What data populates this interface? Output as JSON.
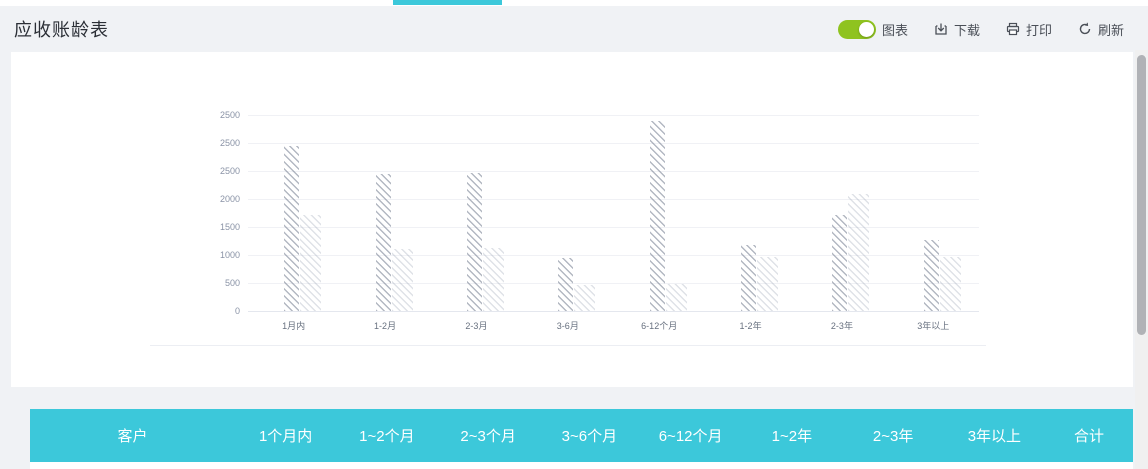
{
  "page": {
    "title": "应收账龄表"
  },
  "toolbar": {
    "chart_toggle_label": "图表",
    "chart_toggle_state": "on",
    "download_label": "下载",
    "print_label": "打印",
    "refresh_label": "刷新"
  },
  "colors": {
    "accent_cyan": "#3cc8da",
    "toggle_green": "#8fc31f",
    "page_bg": "#f0f2f5",
    "card_bg": "#ffffff",
    "bar_dark_hatch": "#6c7686",
    "bar_light_hatch": "#9aa3b4"
  },
  "chart_data": {
    "type": "bar",
    "title": "",
    "xlabel": "",
    "ylabel": "",
    "categories": [
      "1月内",
      "1-2月",
      "2-3月",
      "3-6月",
      "6-12个月",
      "1-2年",
      "2-3年",
      "3年以上"
    ],
    "series": [
      {
        "name": "series-dark-hatch",
        "values": [
          2950,
          2450,
          2460,
          950,
          3400,
          1180,
          1710,
          1270
        ]
      },
      {
        "name": "series-light-hatch",
        "values": [
          1720,
          1100,
          1130,
          470,
          480,
          970,
          2090,
          960
        ]
      }
    ],
    "y_axis_labels_top_to_bottom": [
      "2500",
      "2500",
      "2500",
      "2000",
      "1500",
      "1000",
      "500",
      "0"
    ],
    "ylim": [
      0,
      3500
    ],
    "grid": true,
    "legend_position": "none",
    "bar_style": "diagonal-hatch"
  },
  "table": {
    "headers": [
      "客户",
      "1个月内",
      "1~2个月",
      "2~3个月",
      "3~6个月",
      "6~12个月",
      "1~2年",
      "2~3年",
      "3年以上",
      "合计"
    ]
  }
}
